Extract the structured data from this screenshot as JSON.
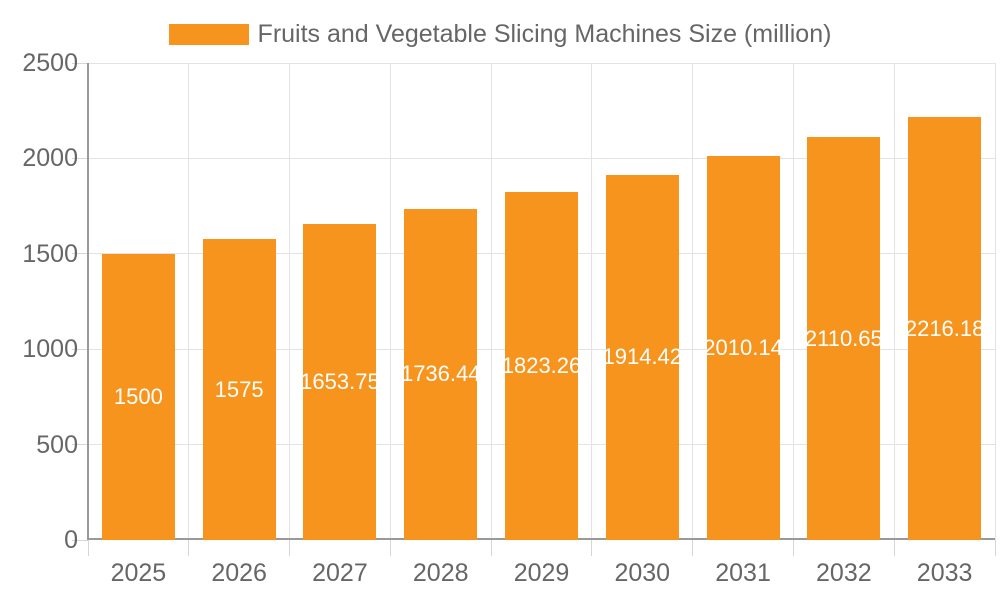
{
  "legend": {
    "label": "Fruits and Vegetable Slicing Machines Size (million)"
  },
  "chart_data": {
    "type": "bar",
    "title": "Fruits and Vegetable Slicing Machines Size (million)",
    "categories": [
      "2025",
      "2026",
      "2027",
      "2028",
      "2029",
      "2030",
      "2031",
      "2032",
      "2033"
    ],
    "values": [
      1500,
      1575,
      1653.75,
      1736.44,
      1823.26,
      1914.42,
      2010.14,
      2110.65,
      2216.18
    ],
    "value_labels": [
      "1500",
      "1575",
      "1653.75",
      "1736.44",
      "1823.26",
      "1914.42",
      "2010.14",
      "2110.65",
      "2216.18"
    ],
    "xlabel": "",
    "ylabel": "",
    "ylim": [
      0,
      2500
    ],
    "yticks": [
      0,
      500,
      1000,
      1500,
      2000,
      2500
    ],
    "grid": true,
    "legend_position": "top-center",
    "value_label_position": "center-of-bar",
    "colors": {
      "bar": "#f7941e",
      "value_text": "#ffffff",
      "axis_text": "#666666",
      "axis_line": "#999999",
      "gridline": "#e3e3e3",
      "tick": "#d6d6d6",
      "background": "#ffffff"
    }
  }
}
